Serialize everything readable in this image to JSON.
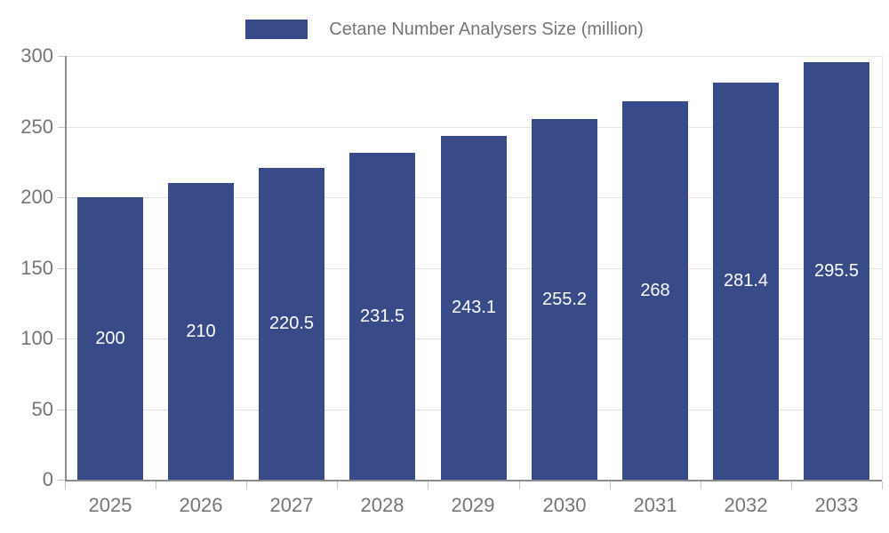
{
  "legend": {
    "label": "Cetane Number Analysers Size (million)"
  },
  "chart_data": {
    "type": "bar",
    "title": "Cetane Number Analysers Size (million)",
    "categories": [
      "2025",
      "2026",
      "2027",
      "2028",
      "2029",
      "2030",
      "2031",
      "2032",
      "2033"
    ],
    "values": [
      200,
      210,
      220.5,
      231.5,
      243.1,
      255.2,
      268,
      281.4,
      295.5
    ],
    "value_labels": [
      "200",
      "210",
      "220.5",
      "231.5",
      "243.1",
      "255.2",
      "268",
      "281.4",
      "295.5"
    ],
    "xlabel": "",
    "ylabel": "",
    "ylim": [
      0,
      300
    ],
    "yticks": [
      0,
      50,
      100,
      150,
      200,
      250,
      300
    ],
    "grid": "on",
    "legend_position": "top-center",
    "colors": {
      "bar": "#384a87",
      "axis_text": "#757575",
      "value_label_text": "#ffffff",
      "grid_line": "#e2e2e2",
      "axis_line": "#8c8c8c",
      "tick_mark": "#c4c4c4",
      "background": "#ffffff"
    }
  }
}
